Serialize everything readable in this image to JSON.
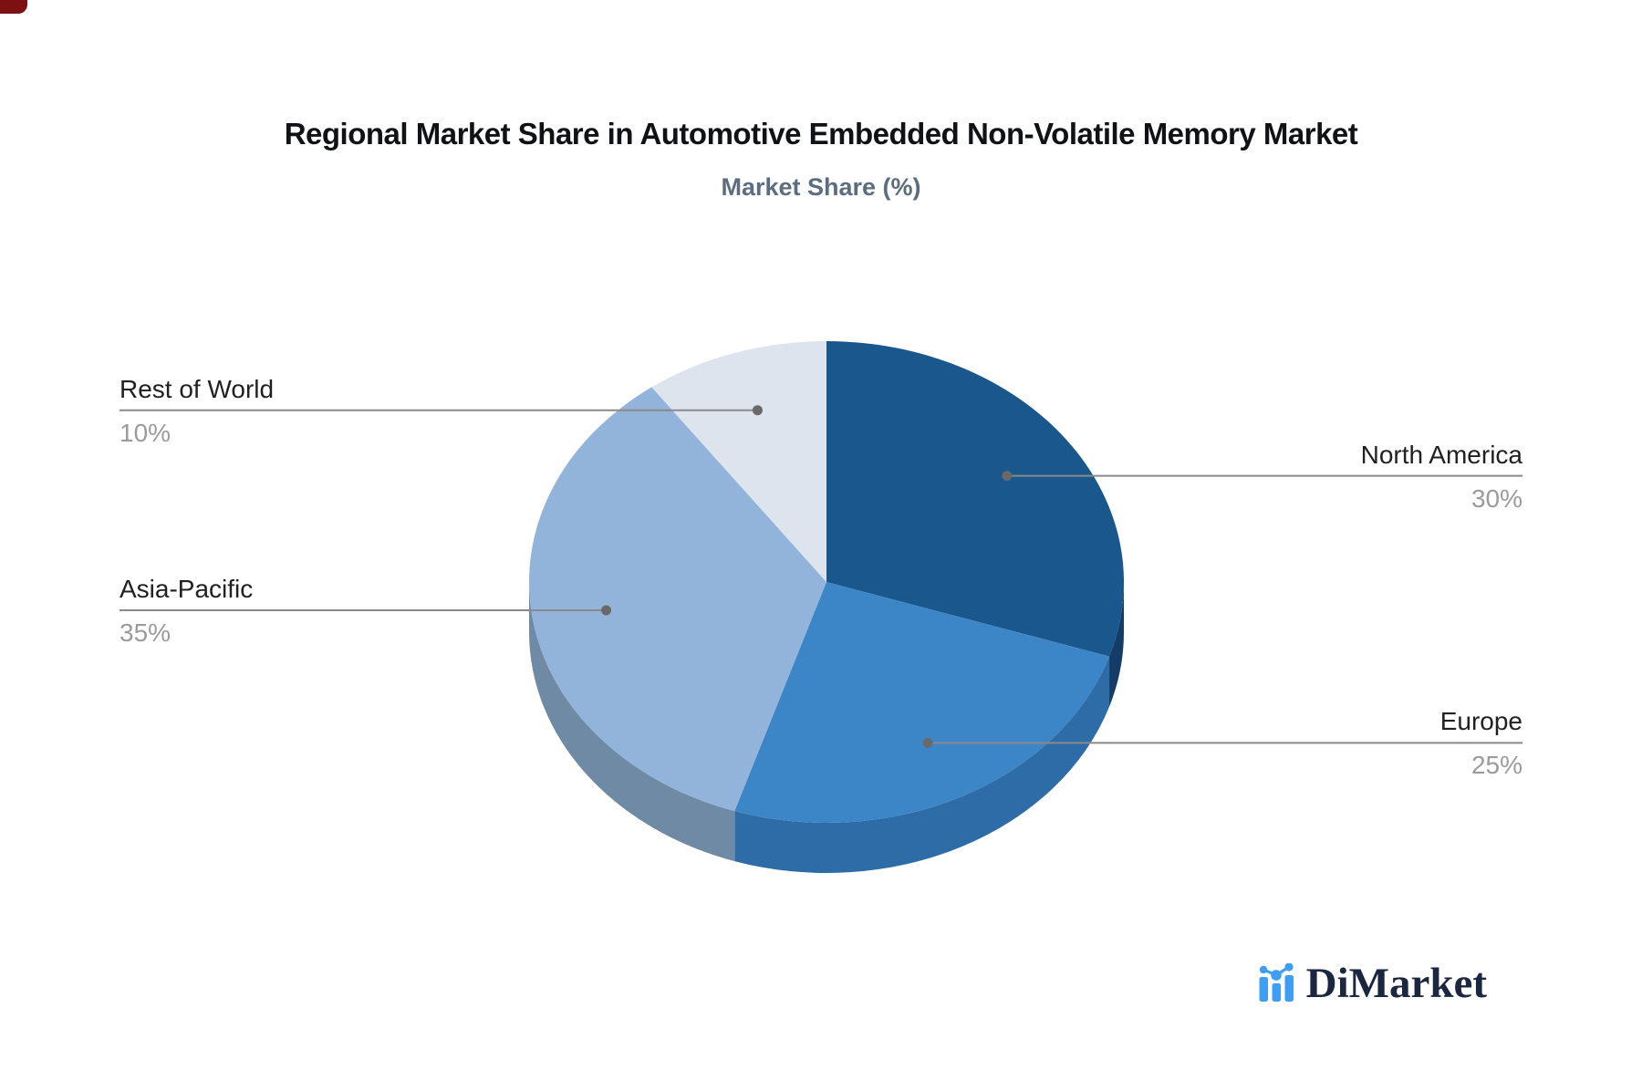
{
  "header": {
    "title": "Regional Market Share in Automotive Embedded Non-Volatile Memory Market",
    "subtitle": "Market Share (%)"
  },
  "chart_data": {
    "type": "pie",
    "style": "3d",
    "title": "Regional Market Share in Automotive Embedded Non-Volatile Memory Market",
    "subtitle": "Market Share (%)",
    "unit": "%",
    "start_angle_deg": 0,
    "direction": "clockwise",
    "slices": [
      {
        "label": "North America",
        "value": 30,
        "value_label": "30%",
        "color": "#1a578d",
        "side_color": "#143c66"
      },
      {
        "label": "Europe",
        "value": 25,
        "value_label": "25%",
        "color": "#3c86c8",
        "side_color": "#2d6ca6"
      },
      {
        "label": "Asia-Pacific",
        "value": 35,
        "value_label": "35%",
        "color": "#92b4da",
        "side_color": "#6f8aa4"
      },
      {
        "label": "Rest of World",
        "value": 10,
        "value_label": "10%",
        "color": "#dde4ee",
        "side_color": "#b9c5d6"
      }
    ],
    "legend_position": "callout-labels",
    "grid": false
  },
  "branding": {
    "logo_text": "DiMarket",
    "logo_icon": "bar-line-chart-icon",
    "icon_color": "#3f9ef2",
    "text_color": "#1b2740"
  },
  "colors": {
    "background": "#ffffff",
    "title": "#101215",
    "subtitle": "#5c6d80",
    "label_text": "#212121",
    "value_text": "#9b9b9b",
    "leader_line": "#8a8a8a",
    "leader_dot": "#696969"
  }
}
